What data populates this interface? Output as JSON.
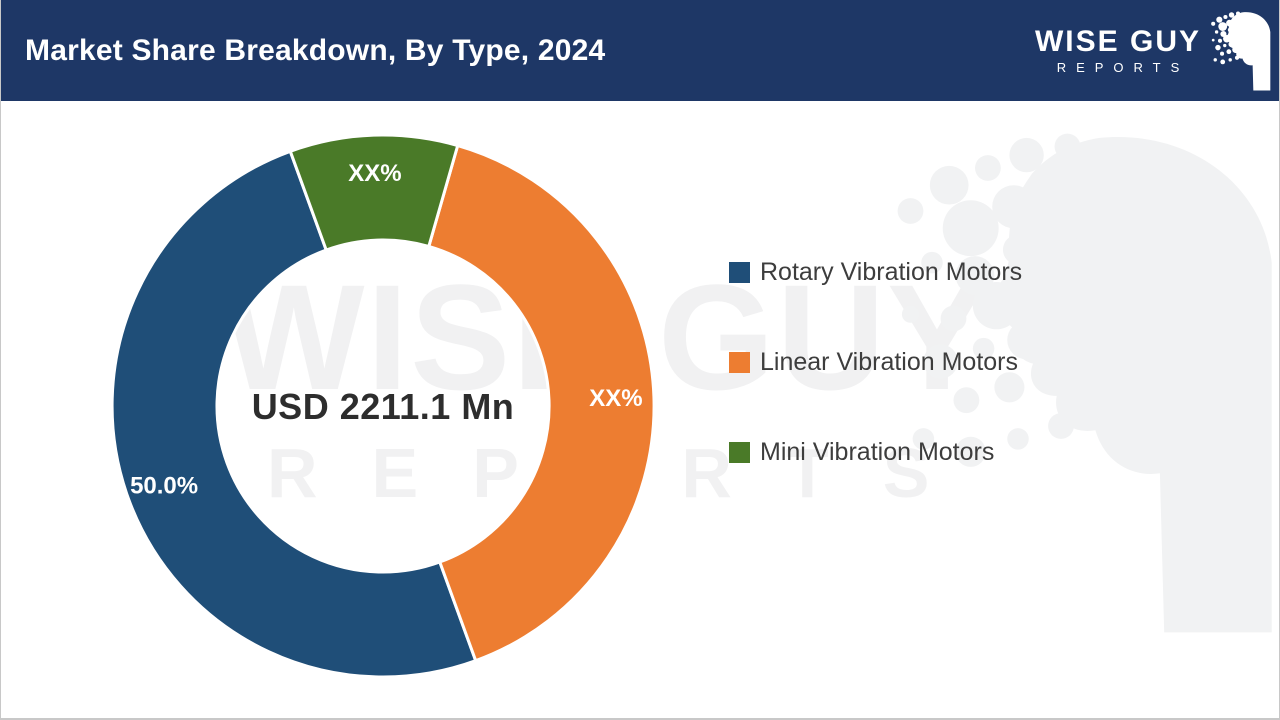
{
  "header": {
    "title": "Market Share Breakdown, By Type, 2024",
    "logo": {
      "line1": "WISE GUY",
      "line2": "REPORTS"
    }
  },
  "watermark": {
    "line1": "WISE GUY",
    "line2": "REPORTS"
  },
  "colors": {
    "header_background": "#1e3766",
    "rotary_blue": "#1f4e78",
    "linear_orange": "#ed7d31",
    "mini_green": "#4a7a28",
    "watermark_gray": "#f1f1f2",
    "center_text": "#2d2d2d"
  },
  "chart_data": {
    "type": "pie",
    "subtype": "donut",
    "title": "Market Share Breakdown, By Type, 2024",
    "center_label": "USD 2211.1 Mn",
    "start_angle_deg": 110,
    "direction": "counterclockwise",
    "legend_position": "right",
    "segments": [
      {
        "label": "Rotary Vibration Motors",
        "value_pct": 50.0,
        "display_label": "50.0%",
        "color": "#1f4e78"
      },
      {
        "label": "Linear Vibration Motors",
        "value_pct": 40.0,
        "display_label": "XX%",
        "color": "#ed7d31"
      },
      {
        "label": "Mini Vibration Motors",
        "value_pct": 10.0,
        "display_label": "XX%",
        "color": "#4a7a28"
      }
    ]
  }
}
